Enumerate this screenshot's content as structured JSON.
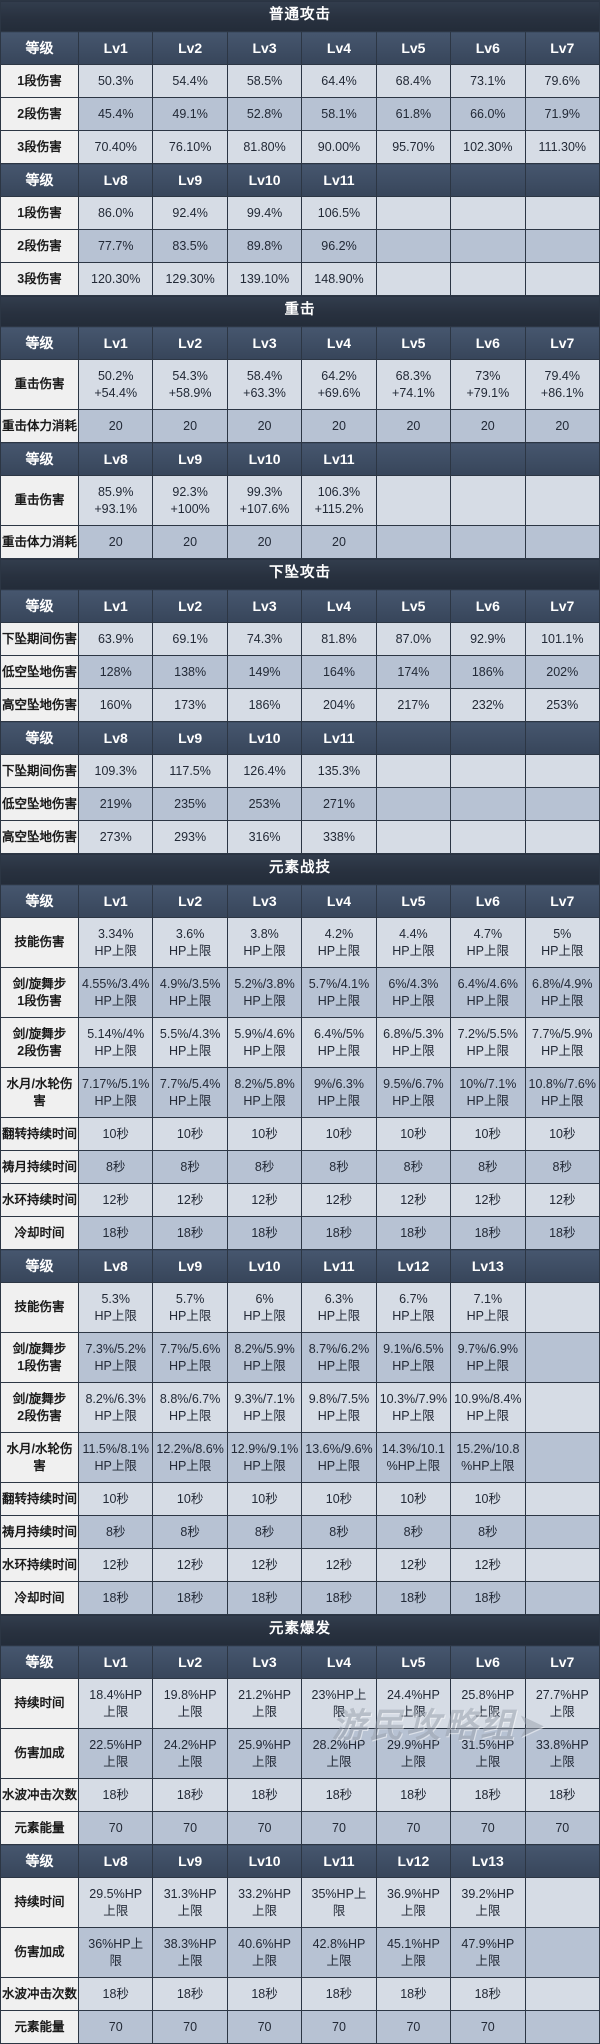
{
  "page": {
    "watermark": "游民攻略组➤"
  },
  "colors": {
    "section_bar": "#28313f",
    "level_bar": "#3d4c62",
    "row_light": "#d6dce5",
    "row_dark": "#b7c2d3",
    "label_bg": "#f0f0f0",
    "border": "#2c3644",
    "header_text": "#ffffff",
    "cell_text": "#222936"
  },
  "level_header_label": "等级",
  "sections": [
    {
      "title": "普通攻击",
      "tables": [
        {
          "levels": [
            "Lv1",
            "Lv2",
            "Lv3",
            "Lv4",
            "Lv5",
            "Lv6",
            "Lv7"
          ],
          "rows": [
            {
              "label": "1段伤害",
              "cells": [
                "50.3%",
                "54.4%",
                "58.5%",
                "64.4%",
                "68.4%",
                "73.1%",
                "79.6%"
              ]
            },
            {
              "label": "2段伤害",
              "cells": [
                "45.4%",
                "49.1%",
                "52.8%",
                "58.1%",
                "61.8%",
                "66.0%",
                "71.9%"
              ]
            },
            {
              "label": "3段伤害",
              "cells": [
                "70.40%",
                "76.10%",
                "81.80%",
                "90.00%",
                "95.70%",
                "102.30%",
                "111.30%"
              ]
            }
          ]
        },
        {
          "levels": [
            "Lv8",
            "Lv9",
            "Lv10",
            "Lv11",
            "",
            "",
            ""
          ],
          "rows": [
            {
              "label": "1段伤害",
              "cells": [
                "86.0%",
                "92.4%",
                "99.4%",
                "106.5%",
                "",
                "",
                ""
              ]
            },
            {
              "label": "2段伤害",
              "cells": [
                "77.7%",
                "83.5%",
                "89.8%",
                "96.2%",
                "",
                "",
                ""
              ]
            },
            {
              "label": "3段伤害",
              "cells": [
                "120.30%",
                "129.30%",
                "139.10%",
                "148.90%",
                "",
                "",
                ""
              ]
            }
          ]
        }
      ]
    },
    {
      "title": "重击",
      "tables": [
        {
          "levels": [
            "Lv1",
            "Lv2",
            "Lv3",
            "Lv4",
            "Lv5",
            "Lv6",
            "Lv7"
          ],
          "rows": [
            {
              "label": "重击伤害",
              "cells": [
                "50.2%\n+54.4%",
                "54.3%\n+58.9%",
                "58.4%\n+63.3%",
                "64.2%\n+69.6%",
                "68.3%\n+74.1%",
                "73%\n+79.1%",
                "79.4%\n+86.1%"
              ]
            },
            {
              "label": "重击体力消耗",
              "cells": [
                "20",
                "20",
                "20",
                "20",
                "20",
                "20",
                "20"
              ]
            }
          ]
        },
        {
          "levels": [
            "Lv8",
            "Lv9",
            "Lv10",
            "Lv11",
            "",
            "",
            ""
          ],
          "rows": [
            {
              "label": "重击伤害",
              "cells": [
                "85.9%\n+93.1%",
                "92.3%\n+100%",
                "99.3%\n+107.6%",
                "106.3%\n+115.2%",
                "",
                "",
                ""
              ]
            },
            {
              "label": "重击体力消耗",
              "cells": [
                "20",
                "20",
                "20",
                "20",
                "",
                "",
                ""
              ]
            }
          ]
        }
      ]
    },
    {
      "title": "下坠攻击",
      "tables": [
        {
          "levels": [
            "Lv1",
            "Lv2",
            "Lv3",
            "Lv4",
            "Lv5",
            "Lv6",
            "Lv7"
          ],
          "rows": [
            {
              "label": "下坠期间伤害",
              "cells": [
                "63.9%",
                "69.1%",
                "74.3%",
                "81.8%",
                "87.0%",
                "92.9%",
                "101.1%"
              ]
            },
            {
              "label": "低空坠地伤害",
              "cells": [
                "128%",
                "138%",
                "149%",
                "164%",
                "174%",
                "186%",
                "202%"
              ]
            },
            {
              "label": "高空坠地伤害",
              "cells": [
                "160%",
                "173%",
                "186%",
                "204%",
                "217%",
                "232%",
                "253%"
              ]
            }
          ]
        },
        {
          "levels": [
            "Lv8",
            "Lv9",
            "Lv10",
            "Lv11",
            "",
            "",
            ""
          ],
          "rows": [
            {
              "label": "下坠期间伤害",
              "cells": [
                "109.3%",
                "117.5%",
                "126.4%",
                "135.3%",
                "",
                "",
                ""
              ]
            },
            {
              "label": "低空坠地伤害",
              "cells": [
                "219%",
                "235%",
                "253%",
                "271%",
                "",
                "",
                ""
              ]
            },
            {
              "label": "高空坠地伤害",
              "cells": [
                "273%",
                "293%",
                "316%",
                "338%",
                "",
                "",
                ""
              ]
            }
          ]
        }
      ]
    },
    {
      "title": "元素战技",
      "tables": [
        {
          "levels": [
            "Lv1",
            "Lv2",
            "Lv3",
            "Lv4",
            "Lv5",
            "Lv6",
            "Lv7"
          ],
          "rows": [
            {
              "label": "技能伤害",
              "cells": [
                "3.34%\nHP上限",
                "3.6%\nHP上限",
                "3.8%\nHP上限",
                "4.2%\nHP上限",
                "4.4%\nHP上限",
                "4.7%\nHP上限",
                "5%\nHP上限"
              ]
            },
            {
              "label": "剑/旋舞步\n1段伤害",
              "cells": [
                "4.55%/3.4%\nHP上限",
                "4.9%/3.5%\nHP上限",
                "5.2%/3.8%\nHP上限",
                "5.7%/4.1%\nHP上限",
                "6%/4.3%\nHP上限",
                "6.4%/4.6%\nHP上限",
                "6.8%/4.9%\nHP上限"
              ]
            },
            {
              "label": "剑/旋舞步\n2段伤害",
              "cells": [
                "5.14%/4%\nHP上限",
                "5.5%/4.3%\nHP上限",
                "5.9%/4.6%\nHP上限",
                "6.4%/5%\nHP上限",
                "6.8%/5.3%\nHP上限",
                "7.2%/5.5%\nHP上限",
                "7.7%/5.9%\nHP上限"
              ]
            },
            {
              "label": "水月/水轮伤害",
              "cells": [
                "7.17%/5.1%\nHP上限",
                "7.7%/5.4%\nHP上限",
                "8.2%/5.8%\nHP上限",
                "9%/6.3%\nHP上限",
                "9.5%/6.7%\nHP上限",
                "10%/7.1%\nHP上限",
                "10.8%/7.6%\nHP上限"
              ]
            },
            {
              "label": "翻转持续时间",
              "cells": [
                "10秒",
                "10秒",
                "10秒",
                "10秒",
                "10秒",
                "10秒",
                "10秒"
              ]
            },
            {
              "label": "祷月持续时间",
              "cells": [
                "8秒",
                "8秒",
                "8秒",
                "8秒",
                "8秒",
                "8秒",
                "8秒"
              ]
            },
            {
              "label": "水环持续时间",
              "cells": [
                "12秒",
                "12秒",
                "12秒",
                "12秒",
                "12秒",
                "12秒",
                "12秒"
              ]
            },
            {
              "label": "冷却时间",
              "cells": [
                "18秒",
                "18秒",
                "18秒",
                "18秒",
                "18秒",
                "18秒",
                "18秒"
              ]
            }
          ]
        },
        {
          "levels": [
            "Lv8",
            "Lv9",
            "Lv10",
            "Lv11",
            "Lv12",
            "Lv13",
            ""
          ],
          "rows": [
            {
              "label": "技能伤害",
              "cells": [
                "5.3%\nHP上限",
                "5.7%\nHP上限",
                "6%\nHP上限",
                "6.3%\nHP上限",
                "6.7%\nHP上限",
                "7.1%\nHP上限",
                ""
              ]
            },
            {
              "label": "剑/旋舞步\n1段伤害",
              "cells": [
                "7.3%/5.2%\nHP上限",
                "7.7%/5.6%\nHP上限",
                "8.2%/5.9%\nHP上限",
                "8.7%/6.2%\nHP上限",
                "9.1%/6.5%\nHP上限",
                "9.7%/6.9%\nHP上限",
                ""
              ]
            },
            {
              "label": "剑/旋舞步\n2段伤害",
              "cells": [
                "8.2%/6.3%\nHP上限",
                "8.8%/6.7%\nHP上限",
                "9.3%/7.1%\nHP上限",
                "9.8%/7.5%\nHP上限",
                "10.3%/7.9%\nHP上限",
                "10.9%/8.4%\nHP上限",
                ""
              ]
            },
            {
              "label": "水月/水轮伤害",
              "cells": [
                "11.5%/8.1%\nHP上限",
                "12.2%/8.6%\nHP上限",
                "12.9%/9.1%\nHP上限",
                "13.6%/9.6%\nHP上限",
                "14.3%/10.1\n%HP上限",
                "15.2%/10.8\n%HP上限",
                ""
              ]
            },
            {
              "label": "翻转持续时间",
              "cells": [
                "10秒",
                "10秒",
                "10秒",
                "10秒",
                "10秒",
                "10秒",
                ""
              ]
            },
            {
              "label": "祷月持续时间",
              "cells": [
                "8秒",
                "8秒",
                "8秒",
                "8秒",
                "8秒",
                "8秒",
                ""
              ]
            },
            {
              "label": "水环持续时间",
              "cells": [
                "12秒",
                "12秒",
                "12秒",
                "12秒",
                "12秒",
                "12秒",
                ""
              ]
            },
            {
              "label": "冷却时间",
              "cells": [
                "18秒",
                "18秒",
                "18秒",
                "18秒",
                "18秒",
                "18秒",
                ""
              ]
            }
          ]
        }
      ]
    },
    {
      "title": "元素爆发",
      "tables": [
        {
          "levels": [
            "Lv1",
            "Lv2",
            "Lv3",
            "Lv4",
            "Lv5",
            "Lv6",
            "Lv7"
          ],
          "rows": [
            {
              "label": "持续时间",
              "cells": [
                "18.4%HP\n上限",
                "19.8%HP\n上限",
                "21.2%HP\n上限",
                "23%HP上\n限",
                "24.4%HP\n上限",
                "25.8%HP\n上限",
                "27.7%HP\n上限"
              ]
            },
            {
              "label": "伤害加成",
              "cells": [
                "22.5%HP\n上限",
                "24.2%HP\n上限",
                "25.9%HP\n上限",
                "28.2%HP\n上限",
                "29.9%HP\n上限",
                "31.5%HP\n上限",
                "33.8%HP\n上限"
              ]
            },
            {
              "label": "水波冲击次数",
              "cells": [
                "18秒",
                "18秒",
                "18秒",
                "18秒",
                "18秒",
                "18秒",
                "18秒"
              ]
            },
            {
              "label": "元素能量",
              "cells": [
                "70",
                "70",
                "70",
                "70",
                "70",
                "70",
                "70"
              ]
            }
          ]
        },
        {
          "levels": [
            "Lv8",
            "Lv9",
            "Lv10",
            "Lv11",
            "Lv12",
            "Lv13",
            ""
          ],
          "rows": [
            {
              "label": "持续时间",
              "cells": [
                "29.5%HP\n上限",
                "31.3%HP\n上限",
                "33.2%HP\n上限",
                "35%HP上\n限",
                "36.9%HP\n上限",
                "39.2%HP\n上限",
                ""
              ]
            },
            {
              "label": "伤害加成",
              "cells": [
                "36%HP上\n限",
                "38.3%HP\n上限",
                "40.6%HP\n上限",
                "42.8%HP\n上限",
                "45.1%HP\n上限",
                "47.9%HP\n上限",
                ""
              ]
            },
            {
              "label": "水波冲击次数",
              "cells": [
                "18秒",
                "18秒",
                "18秒",
                "18秒",
                "18秒",
                "18秒",
                ""
              ]
            },
            {
              "label": "元素能量",
              "cells": [
                "70",
                "70",
                "70",
                "70",
                "70",
                "70",
                ""
              ]
            }
          ]
        }
      ]
    }
  ]
}
